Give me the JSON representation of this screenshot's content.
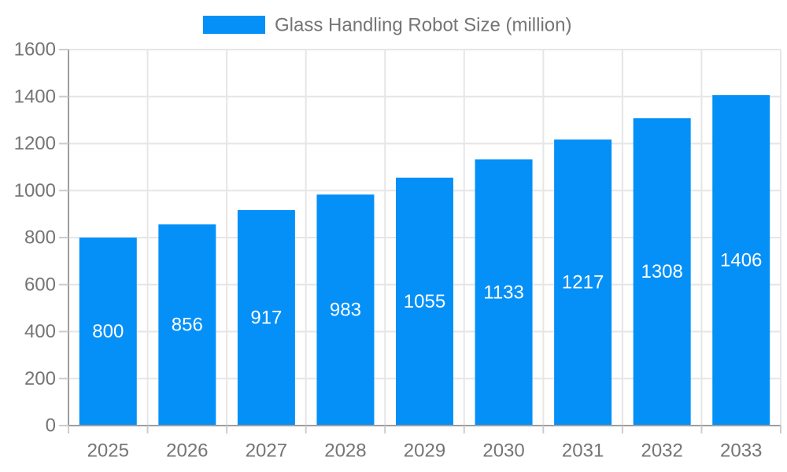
{
  "chart_data": {
    "type": "bar",
    "title": "Glass Handling Robot Size (million)",
    "legend_label": "Glass Handling Robot Size (million)",
    "legend_position": "top-center",
    "categories": [
      "2025",
      "2026",
      "2027",
      "2028",
      "2029",
      "2030",
      "2031",
      "2032",
      "2033"
    ],
    "series": [
      {
        "name": "Glass Handling Robot Size (million)",
        "values": [
          800,
          856,
          917,
          983,
          1055,
          1133,
          1217,
          1308,
          1406
        ]
      }
    ],
    "data_labels": [
      "800",
      "856",
      "917",
      "983",
      "1055",
      "1133",
      "1217",
      "1308",
      "1406"
    ],
    "xlabel": "",
    "ylabel": "",
    "ylim": [
      0,
      1600
    ],
    "ytick_step": 200,
    "ytick_labels": [
      "0",
      "200",
      "400",
      "600",
      "800",
      "1000",
      "1200",
      "1400",
      "1600"
    ],
    "grid": true,
    "colors": {
      "bar": "#0590f8",
      "bar_label_text": "#ffffff",
      "axis_text": "#757575",
      "axis_line": "#9e9e9e",
      "tick_line": "#cccccc",
      "gridline": "#e6e6e6",
      "background": "#ffffff",
      "legend_text": "#757575"
    }
  }
}
